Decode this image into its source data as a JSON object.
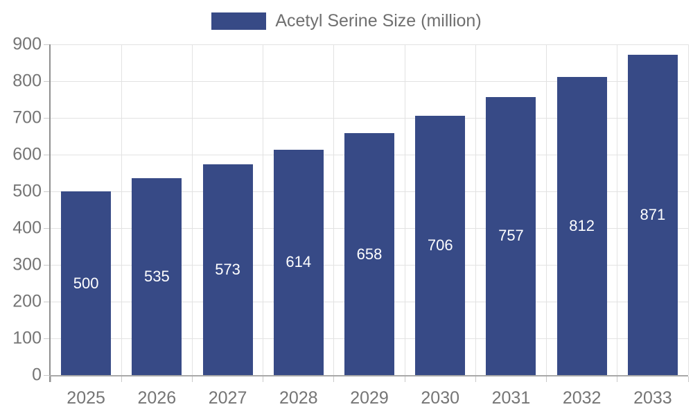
{
  "chart": {
    "legend": {
      "label": "Acetyl Serine Size (million)"
    }
  },
  "chart_data": {
    "type": "bar",
    "title": "",
    "categories": [
      "2025",
      "2026",
      "2027",
      "2028",
      "2029",
      "2030",
      "2031",
      "2032",
      "2033"
    ],
    "series": [
      {
        "name": "Acetyl Serine Size (million)",
        "values": [
          500,
          535,
          573,
          614,
          658,
          706,
          757,
          812,
          871
        ]
      }
    ],
    "xlabel": "",
    "ylabel": "",
    "ylim": [
      0,
      900
    ],
    "yticks": [
      0,
      100,
      200,
      300,
      400,
      500,
      600,
      700,
      800,
      900
    ],
    "grid": true,
    "legend_position": "top",
    "colors": {
      "bar": "#374a86",
      "grid": "#e2e2e2",
      "axis_y": "#8f8f8f",
      "axis_x": "#a8a8a8",
      "tick": "#c9c9c9",
      "tick_label": "#757575",
      "legend_text": "#6f6f6f",
      "value_label": "#ffffff",
      "background": "#ffffff"
    }
  }
}
